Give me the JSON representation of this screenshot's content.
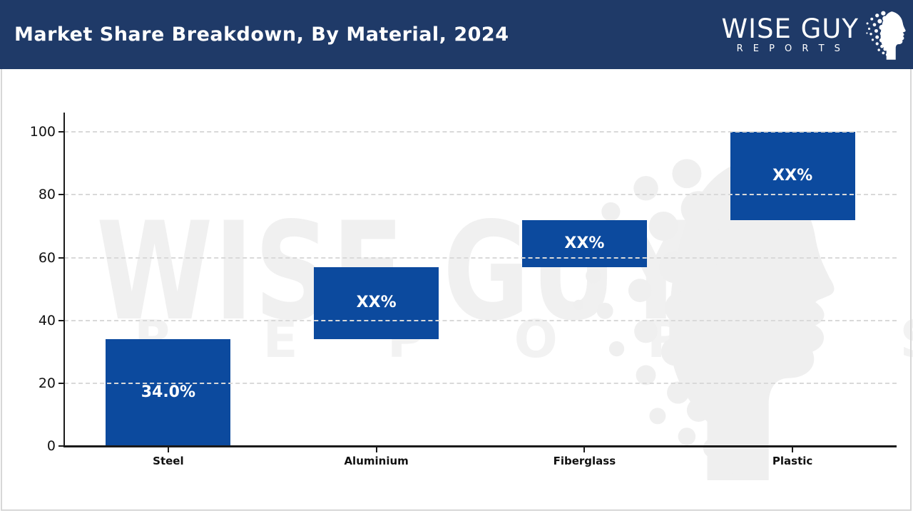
{
  "header": {
    "title": "Market Share Breakdown, By Material, 2024",
    "bg_color": "#1f3a68",
    "text_color": "#ffffff",
    "logo": {
      "line1": "WISE GUY",
      "line2": "R E P O R T S"
    }
  },
  "watermark": {
    "line1": "WISE GUY",
    "line2": "R E P O R T S"
  },
  "chart_data": {
    "type": "bar",
    "subtype": "waterfall",
    "title": "Market Share Breakdown, By Material, 2024",
    "categories": [
      "Steel",
      "Aluminium",
      "Fiberglass",
      "Plastic"
    ],
    "series": [
      {
        "values": [
          34,
          23,
          15,
          28
        ],
        "starts": [
          0,
          34,
          57,
          72
        ],
        "ends": [
          34,
          57,
          72,
          100
        ],
        "labels": [
          "34.0%",
          "XX%",
          "XX%",
          "XX%"
        ]
      }
    ],
    "xlabel": "",
    "ylabel": "",
    "yticks": [
      0,
      20,
      40,
      60,
      80,
      100
    ],
    "ylim": [
      0,
      105
    ],
    "grid": true,
    "grid_style": "dashed-horizontal",
    "legend": "none",
    "bar_color": "#0c4a9e",
    "bar_label_color": "#ffffff"
  }
}
